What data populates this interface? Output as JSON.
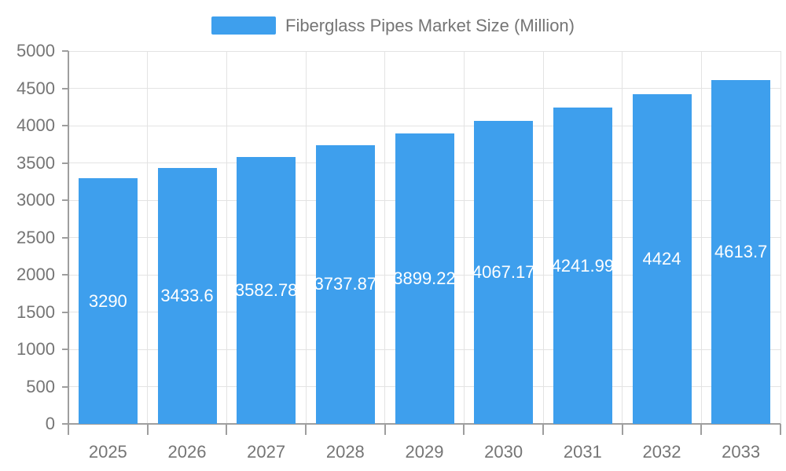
{
  "chart_data": {
    "type": "bar",
    "series_name": "Fiberglass Pipes Market Size (Million)",
    "categories": [
      "2025",
      "2026",
      "2027",
      "2028",
      "2029",
      "2030",
      "2031",
      "2032",
      "2033"
    ],
    "values": [
      3290,
      3433.6,
      3582.78,
      3737.87,
      3899.22,
      4067.17,
      4241.99,
      4424,
      4613.7
    ],
    "value_labels": [
      "3290",
      "3433.6",
      "3582.78",
      "3737.87",
      "3899.22",
      "4067.17",
      "4241.99",
      "4424",
      "4613.7"
    ],
    "xlabel": "",
    "ylabel": "",
    "ylim": [
      0,
      5000
    ],
    "ytick_step": 500,
    "ytick_labels": [
      "0",
      "500",
      "1000",
      "1500",
      "2000",
      "2500",
      "3000",
      "3500",
      "4000",
      "4500",
      "5000"
    ],
    "grid": true,
    "legend_position": "top-center",
    "colors": {
      "bar": "#3E9FED",
      "bar_value_label": "#ffffff",
      "axis_text": "#757575",
      "axis_line": "#9e9e9e",
      "gridline": "#e3e3e3"
    }
  }
}
